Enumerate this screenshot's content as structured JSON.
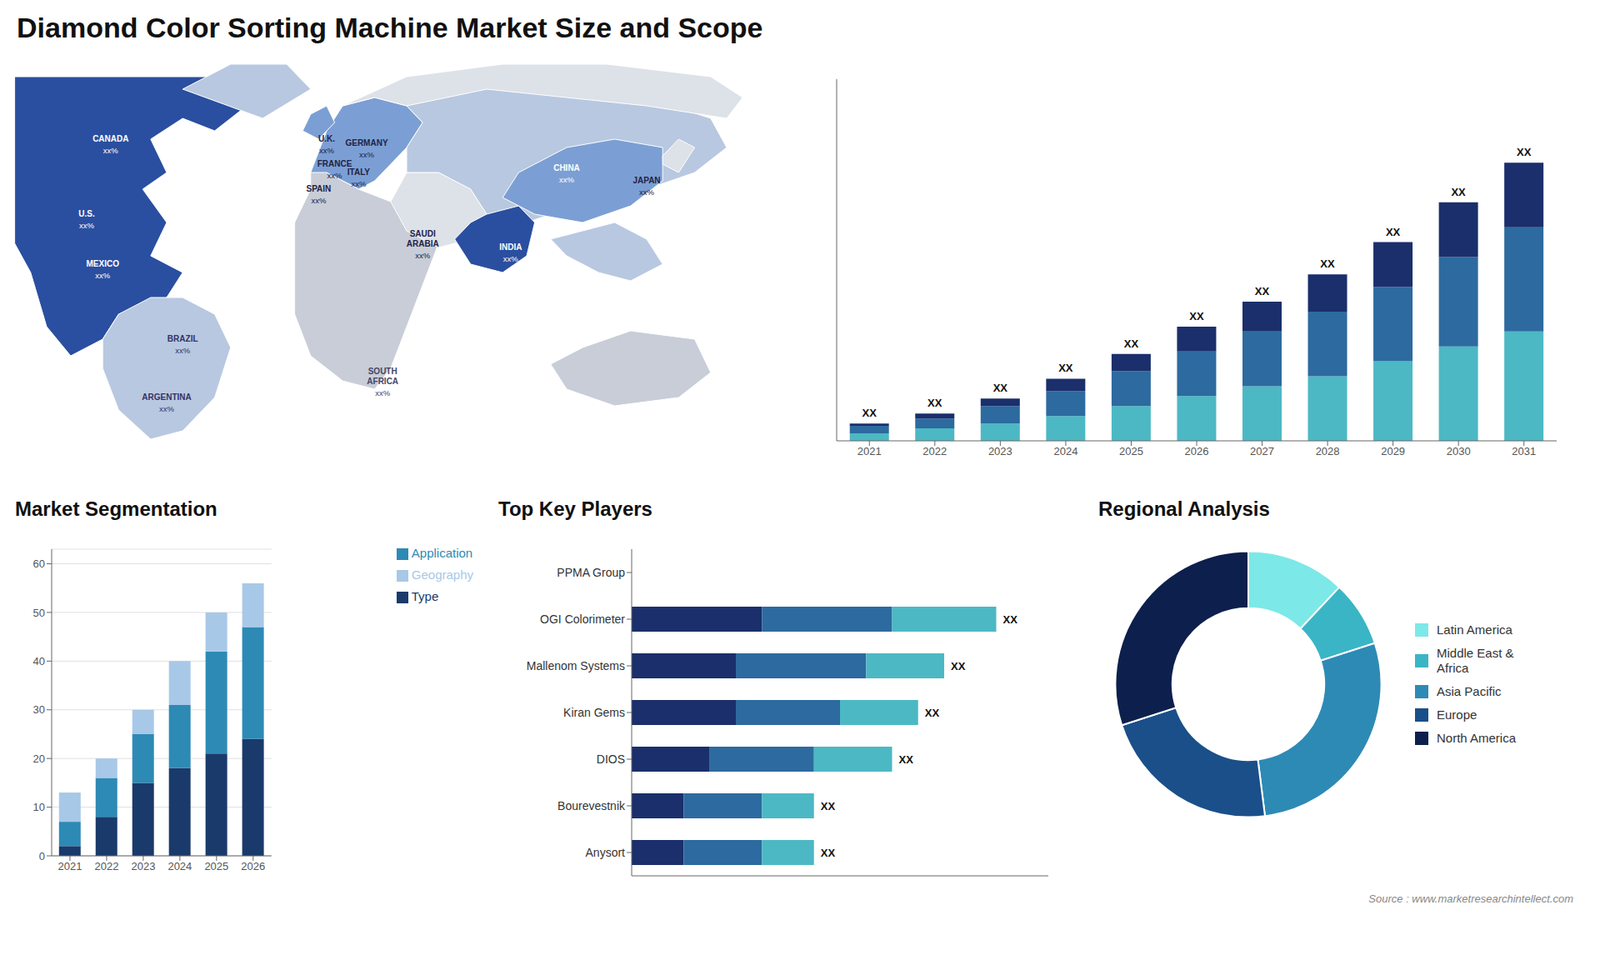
{
  "title": "Diamond Color Sorting Machine Market Size and Scope",
  "annotations": [
    "Source : www.marketresearchintellect.com"
  ],
  "chart_data": [
    {
      "type": "map",
      "categories": [
        "CANADA",
        "U.S.",
        "MEXICO",
        "BRAZIL",
        "ARGENTINA",
        "U.K.",
        "FRANCE",
        "SPAIN",
        "GERMANY",
        "ITALY",
        "SAUDI\nARABIA",
        "SOUTH\nAFRICA",
        "CHINA",
        "INDIA",
        "JAPAN"
      ],
      "value_labels": [
        "xx%",
        "xx%",
        "xx%",
        "xx%",
        "xx%",
        "xx%",
        "xx%",
        "xx%",
        "xx%",
        "xx%",
        "xx%",
        "xx%",
        "xx%",
        "xx%",
        "xx%"
      ]
    },
    {
      "type": "bar",
      "stacked": true,
      "categories": [
        "2021",
        "2022",
        "2023",
        "2024",
        "2025",
        "2026",
        "2027",
        "2028",
        "2029",
        "2030",
        "2031"
      ],
      "series": [
        {
          "color": "#4cb8c4",
          "values": [
            1.5,
            2.5,
            3.5,
            5,
            7,
            9,
            11,
            13,
            16,
            19,
            22
          ]
        },
        {
          "color": "#2d6a9f",
          "values": [
            1.5,
            2.0,
            3.5,
            5,
            7,
            9,
            11,
            13,
            15,
            18,
            21
          ]
        },
        {
          "color": "#1a2f6b",
          "values": [
            0.5,
            1.0,
            1.5,
            2.5,
            3.5,
            5,
            6,
            7.5,
            9,
            11,
            13
          ]
        }
      ],
      "value_labels": [
        "XX",
        "XX",
        "XX",
        "XX",
        "XX",
        "XX",
        "XX",
        "XX",
        "XX",
        "XX",
        "XX"
      ],
      "ylim": [
        0,
        72.8
      ],
      "tick_labels": "x",
      "grid": false
    },
    {
      "type": "bar",
      "title": "Market Segmentation",
      "stacked": true,
      "categories": [
        "2021",
        "2022",
        "2023",
        "2024",
        "2025",
        "2026"
      ],
      "series": [
        {
          "name": "Type",
          "color": "#1a3a6b",
          "values": [
            2,
            8,
            15,
            18,
            21,
            24
          ]
        },
        {
          "name": "Application",
          "color": "#2d8ab5",
          "values": [
            5,
            8,
            10,
            13,
            21,
            23
          ]
        },
        {
          "name": "Geography",
          "color": "#a8c8e8",
          "values": [
            6,
            4,
            5,
            9,
            8,
            9
          ]
        }
      ],
      "ylim": [
        0,
        63
      ],
      "yticks": [
        0,
        10,
        20,
        30,
        40,
        50,
        60
      ],
      "grid": true,
      "legend": "right"
    },
    {
      "type": "bar",
      "title": "Top Key Players",
      "orientation": "horizontal",
      "stacked": true,
      "categories": [
        "PPMA Group",
        "OGI Colorimeter",
        "Mallenom Systems",
        "Kiran Gems",
        "DIOS",
        "Bourevestnik",
        "Anysort"
      ],
      "series": [
        {
          "color": "#1a2f6b",
          "values": [
            0,
            5,
            4,
            4,
            3,
            2,
            2
          ]
        },
        {
          "color": "#2d6a9f",
          "values": [
            0,
            5,
            5,
            4,
            4,
            3,
            3
          ]
        },
        {
          "color": "#4cb8c4",
          "values": [
            0,
            4,
            3,
            3,
            3,
            2,
            2
          ]
        }
      ],
      "value_labels": [
        null,
        "XX",
        "XX",
        "XX",
        "XX",
        "XX",
        "XX"
      ],
      "xlim": [
        0,
        16
      ],
      "tick_labels": "y",
      "grid": false
    },
    {
      "type": "pie",
      "title": "Regional Analysis",
      "categories": [
        "Latin America",
        "Middle East &\nAfrica",
        "Asia Pacific",
        "Europe",
        "North America"
      ],
      "values": [
        12,
        8,
        28,
        22,
        30
      ],
      "colors": [
        "#7de8e8",
        "#3ab5c6",
        "#2d8ab5",
        "#1a4f8a",
        "#0d1f4c"
      ],
      "legend": "right"
    }
  ]
}
